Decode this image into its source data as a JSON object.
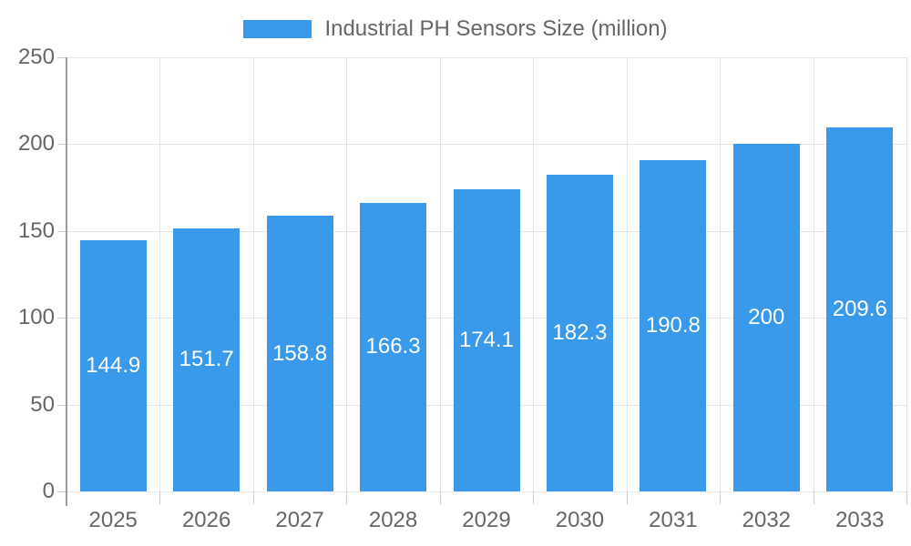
{
  "legend": {
    "label": "Industrial PH Sensors Size (million)"
  },
  "chart_data": {
    "type": "bar",
    "title": "Industrial PH Sensors Size (million)",
    "categories": [
      "2025",
      "2026",
      "2027",
      "2028",
      "2029",
      "2030",
      "2031",
      "2032",
      "2033"
    ],
    "series": [
      {
        "name": "Industrial PH Sensors Size (million)",
        "values": [
          144.9,
          151.7,
          158.8,
          166.3,
          174.1,
          182.3,
          190.8,
          200,
          209.6
        ]
      }
    ],
    "value_labels": [
      "144.9",
      "151.7",
      "158.8",
      "166.3",
      "174.1",
      "182.3",
      "190.8",
      "200",
      "209.6"
    ],
    "xlabel": "",
    "ylabel": "",
    "ylim": [
      0,
      250
    ],
    "yticks": [
      0,
      50,
      100,
      150,
      200,
      250
    ],
    "grid": true,
    "legend_position": "top",
    "value_label_position": "center-of-bar",
    "colors": {
      "bar": "#3999EB",
      "grid": "#e5e5e5",
      "axis": "#9b9b9b",
      "tick": "#cccccc",
      "text": "#666666",
      "value_label": "#ffffff"
    }
  }
}
